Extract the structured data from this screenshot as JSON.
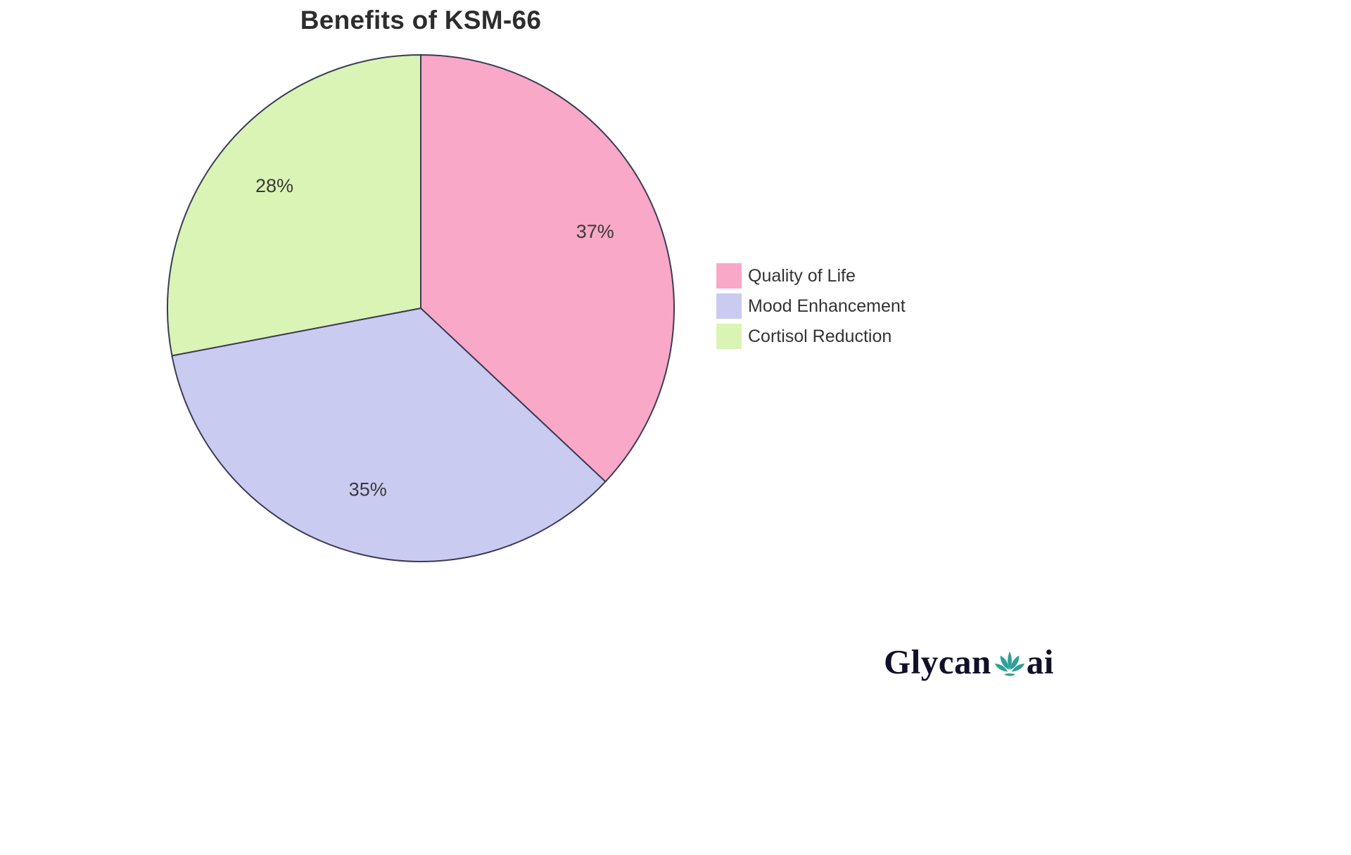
{
  "page": {
    "background": "#FFFFFF"
  },
  "chart_data": {
    "type": "pie",
    "title": "Benefits of KSM-66",
    "slices": [
      {
        "label": "Quality of Life",
        "value": 37,
        "pct_label": "37%",
        "color": "#F9A8C7"
      },
      {
        "label": "Mood Enhancement",
        "value": 35,
        "pct_label": "35%",
        "color": "#C9CBF1"
      },
      {
        "label": "Cortisol Reduction",
        "value": 28,
        "pct_label": "28%",
        "color": "#D9F4B4"
      }
    ],
    "start_angle": "top",
    "direction": "clockwise",
    "stroke_color": "#3B3B55",
    "stroke_width": 2,
    "label_color": "#3A3A3A",
    "label_distance": 0.75,
    "legend_position": "right",
    "grid": false
  },
  "branding": {
    "name_left": "Glycan",
    "name_right": "ai",
    "icon": "lotus-icon",
    "text_color": "#10102A",
    "icon_color": "#2FA096"
  }
}
